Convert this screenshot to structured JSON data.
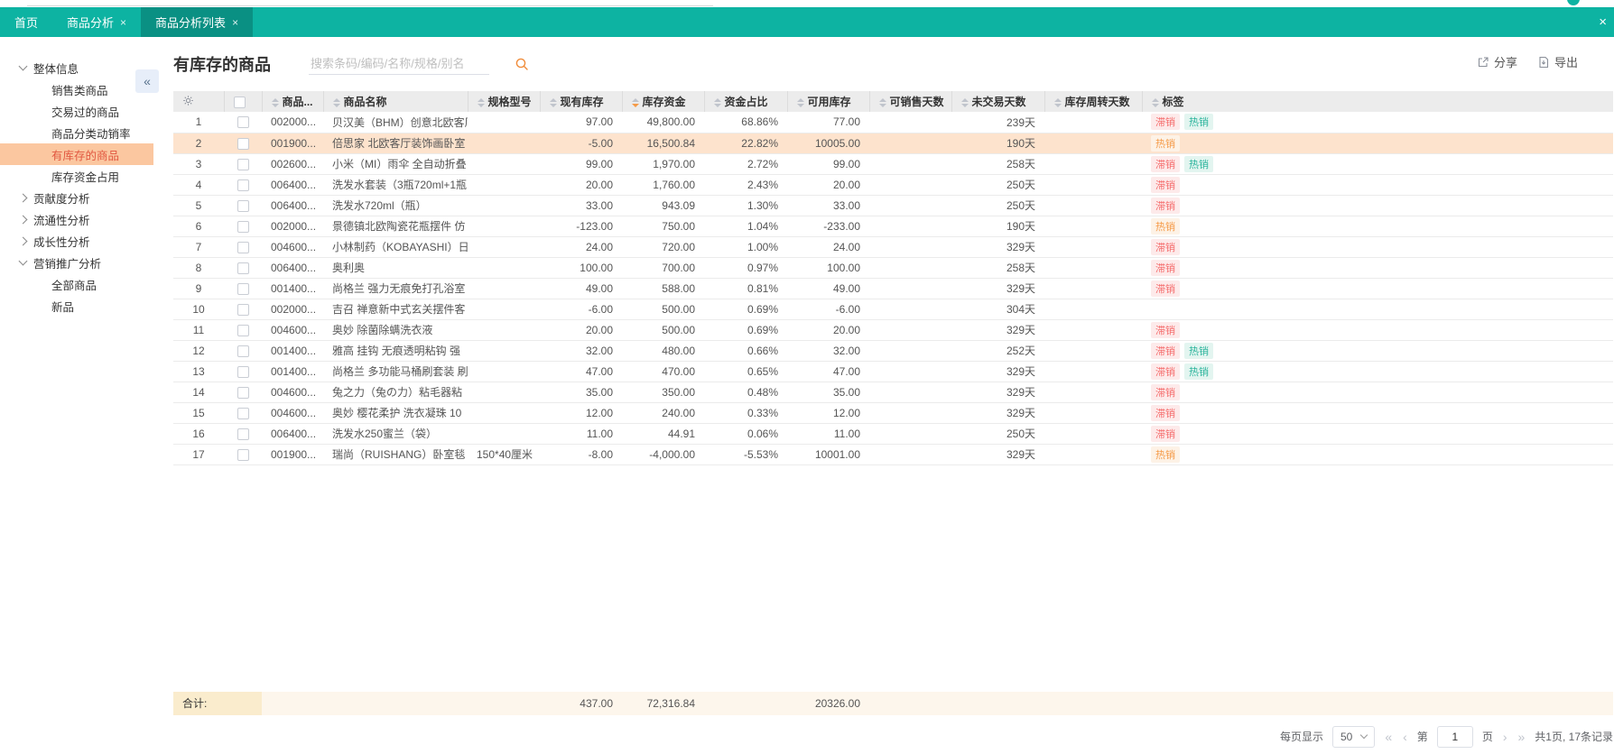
{
  "tabs": [
    {
      "label": "首页",
      "closable": false,
      "active": false
    },
    {
      "label": "商品分析",
      "closable": true,
      "active": false
    },
    {
      "label": "商品分析列表",
      "closable": true,
      "active": true
    }
  ],
  "topbar": {
    "close_icon": "×"
  },
  "sidebar": {
    "collapse_icon": "«",
    "items": [
      {
        "label": "整体信息",
        "level": 0,
        "state": "expanded",
        "selected": false
      },
      {
        "label": "销售类商品",
        "level": 1,
        "state": "leaf",
        "selected": false
      },
      {
        "label": "交易过的商品",
        "level": 1,
        "state": "leaf",
        "selected": false
      },
      {
        "label": "商品分类动销率",
        "level": 1,
        "state": "leaf",
        "selected": false
      },
      {
        "label": "有库存的商品",
        "level": 1,
        "state": "leaf",
        "selected": true
      },
      {
        "label": "库存资金占用",
        "level": 1,
        "state": "leaf",
        "selected": false
      },
      {
        "label": "贡献度分析",
        "level": 0,
        "state": "collapsed",
        "selected": false
      },
      {
        "label": "流通性分析",
        "level": 0,
        "state": "collapsed",
        "selected": false
      },
      {
        "label": "成长性分析",
        "level": 0,
        "state": "collapsed",
        "selected": false
      },
      {
        "label": "营销推广分析",
        "level": 0,
        "state": "expanded",
        "selected": false
      },
      {
        "label": "全部商品",
        "level": 1,
        "state": "leaf",
        "selected": false
      },
      {
        "label": "新品",
        "level": 1,
        "state": "leaf",
        "selected": false
      }
    ]
  },
  "header": {
    "title": "有库存的商品",
    "search_placeholder": "搜索条码/编码/名称/规格/别名",
    "share_label": "分享",
    "export_label": "导出"
  },
  "table": {
    "columns": [
      {
        "key": "code",
        "label": "商品...",
        "align": "left",
        "sort": "none"
      },
      {
        "key": "name",
        "label": "商品名称",
        "align": "left",
        "sort": "none"
      },
      {
        "key": "spec",
        "label": "规格型号",
        "align": "left",
        "sort": "none"
      },
      {
        "key": "stock",
        "label": "现有库存",
        "align": "right",
        "sort": "none"
      },
      {
        "key": "fund",
        "label": "库存资金",
        "align": "right",
        "sort": "desc"
      },
      {
        "key": "ratio",
        "label": "资金占比",
        "align": "right",
        "sort": "none"
      },
      {
        "key": "avail",
        "label": "可用库存",
        "align": "right",
        "sort": "none"
      },
      {
        "key": "sale_days",
        "label": "可销售天数",
        "align": "right",
        "sort": "none"
      },
      {
        "key": "idle_days",
        "label": "未交易天数",
        "align": "right",
        "sort": "none"
      },
      {
        "key": "turnover_days",
        "label": "库存周转天数",
        "align": "right",
        "sort": "none"
      },
      {
        "key": "tags",
        "label": "标签",
        "align": "left",
        "sort": "none"
      }
    ],
    "tag_colors": {
      "stale": "#f56c6c",
      "hot": "#2bb49c",
      "hot-alt": "#f59a47"
    },
    "rows": [
      {
        "num": "1",
        "code": "002000...",
        "name": "贝汉美（BHM）创意北欧客厅",
        "spec": "",
        "stock": "97.00",
        "fund": "49,800.00",
        "ratio": "68.86%",
        "avail": "77.00",
        "sale_days": "",
        "idle_days": "239天",
        "turnover_days": "",
        "tags": [
          {
            "label": "滞销",
            "type": "stale"
          },
          {
            "label": "热销",
            "type": "hot"
          }
        ],
        "highlighted": false
      },
      {
        "num": "2",
        "code": "001900...",
        "name": "倍思家 北欧客厅装饰画卧室",
        "spec": "",
        "stock": "-5.00",
        "fund": "16,500.84",
        "ratio": "22.82%",
        "avail": "10005.00",
        "sale_days": "",
        "idle_days": "190天",
        "turnover_days": "",
        "tags": [
          {
            "label": "热销",
            "type": "hot-alt"
          }
        ],
        "highlighted": true
      },
      {
        "num": "3",
        "code": "002600...",
        "name": "小米（MI）雨伞 全自动折叠",
        "spec": "",
        "stock": "99.00",
        "fund": "1,970.00",
        "ratio": "2.72%",
        "avail": "99.00",
        "sale_days": "",
        "idle_days": "258天",
        "turnover_days": "",
        "tags": [
          {
            "label": "滞销",
            "type": "stale"
          },
          {
            "label": "热销",
            "type": "hot"
          }
        ],
        "highlighted": false
      },
      {
        "num": "4",
        "code": "006400...",
        "name": "洗发水套装（3瓶720ml+1瓶",
        "spec": "",
        "stock": "20.00",
        "fund": "1,760.00",
        "ratio": "2.43%",
        "avail": "20.00",
        "sale_days": "",
        "idle_days": "250天",
        "turnover_days": "",
        "tags": [
          {
            "label": "滞销",
            "type": "stale"
          }
        ],
        "highlighted": false
      },
      {
        "num": "5",
        "code": "006400...",
        "name": "洗发水720ml（瓶）",
        "spec": "",
        "stock": "33.00",
        "fund": "943.09",
        "ratio": "1.30%",
        "avail": "33.00",
        "sale_days": "",
        "idle_days": "250天",
        "turnover_days": "",
        "tags": [
          {
            "label": "滞销",
            "type": "stale"
          }
        ],
        "highlighted": false
      },
      {
        "num": "6",
        "code": "002000...",
        "name": "景德镇北欧陶瓷花瓶摆件 仿",
        "spec": "",
        "stock": "-123.00",
        "fund": "750.00",
        "ratio": "1.04%",
        "avail": "-233.00",
        "sale_days": "",
        "idle_days": "190天",
        "turnover_days": "",
        "tags": [
          {
            "label": "热销",
            "type": "hot-alt"
          }
        ],
        "highlighted": false
      },
      {
        "num": "7",
        "code": "004600...",
        "name": "小林制药（KOBAYASHI）日",
        "spec": "",
        "stock": "24.00",
        "fund": "720.00",
        "ratio": "1.00%",
        "avail": "24.00",
        "sale_days": "",
        "idle_days": "329天",
        "turnover_days": "",
        "tags": [
          {
            "label": "滞销",
            "type": "stale"
          }
        ],
        "highlighted": false
      },
      {
        "num": "8",
        "code": "006400...",
        "name": "奥利奥",
        "spec": "",
        "stock": "100.00",
        "fund": "700.00",
        "ratio": "0.97%",
        "avail": "100.00",
        "sale_days": "",
        "idle_days": "258天",
        "turnover_days": "",
        "tags": [
          {
            "label": "滞销",
            "type": "stale"
          }
        ],
        "highlighted": false
      },
      {
        "num": "9",
        "code": "001400...",
        "name": "尚格兰 强力无痕免打孔浴室",
        "spec": "",
        "stock": "49.00",
        "fund": "588.00",
        "ratio": "0.81%",
        "avail": "49.00",
        "sale_days": "",
        "idle_days": "329天",
        "turnover_days": "",
        "tags": [
          {
            "label": "滞销",
            "type": "stale"
          }
        ],
        "highlighted": false
      },
      {
        "num": "10",
        "code": "002000...",
        "name": "吉召 禅意新中式玄关摆件客",
        "spec": "",
        "stock": "-6.00",
        "fund": "500.00",
        "ratio": "0.69%",
        "avail": "-6.00",
        "sale_days": "",
        "idle_days": "304天",
        "turnover_days": "",
        "tags": [],
        "highlighted": false
      },
      {
        "num": "11",
        "code": "004600...",
        "name": "奥妙 除菌除螨洗衣液",
        "spec": "",
        "stock": "20.00",
        "fund": "500.00",
        "ratio": "0.69%",
        "avail": "20.00",
        "sale_days": "",
        "idle_days": "329天",
        "turnover_days": "",
        "tags": [
          {
            "label": "滞销",
            "type": "stale"
          }
        ],
        "highlighted": false
      },
      {
        "num": "12",
        "code": "001400...",
        "name": "雅高 挂钩 无痕透明粘钩 强",
        "spec": "",
        "stock": "32.00",
        "fund": "480.00",
        "ratio": "0.66%",
        "avail": "32.00",
        "sale_days": "",
        "idle_days": "252天",
        "turnover_days": "",
        "tags": [
          {
            "label": "滞销",
            "type": "stale"
          },
          {
            "label": "热销",
            "type": "hot"
          }
        ],
        "highlighted": false
      },
      {
        "num": "13",
        "code": "001400...",
        "name": "尚格兰 多功能马桶刷套装 刷",
        "spec": "",
        "stock": "47.00",
        "fund": "470.00",
        "ratio": "0.65%",
        "avail": "47.00",
        "sale_days": "",
        "idle_days": "329天",
        "turnover_days": "",
        "tags": [
          {
            "label": "滞销",
            "type": "stale"
          },
          {
            "label": "热销",
            "type": "hot"
          }
        ],
        "highlighted": false
      },
      {
        "num": "14",
        "code": "004600...",
        "name": "兔之力（兔の力）粘毛器粘",
        "spec": "",
        "stock": "35.00",
        "fund": "350.00",
        "ratio": "0.48%",
        "avail": "35.00",
        "sale_days": "",
        "idle_days": "329天",
        "turnover_days": "",
        "tags": [
          {
            "label": "滞销",
            "type": "stale"
          }
        ],
        "highlighted": false
      },
      {
        "num": "15",
        "code": "004600...",
        "name": "奥妙 樱花柔护 洗衣凝珠 10",
        "spec": "",
        "stock": "12.00",
        "fund": "240.00",
        "ratio": "0.33%",
        "avail": "12.00",
        "sale_days": "",
        "idle_days": "329天",
        "turnover_days": "",
        "tags": [
          {
            "label": "滞销",
            "type": "stale"
          }
        ],
        "highlighted": false
      },
      {
        "num": "16",
        "code": "006400...",
        "name": "洗发水250蜜兰（袋）",
        "spec": "",
        "stock": "11.00",
        "fund": "44.91",
        "ratio": "0.06%",
        "avail": "11.00",
        "sale_days": "",
        "idle_days": "250天",
        "turnover_days": "",
        "tags": [
          {
            "label": "滞销",
            "type": "stale"
          }
        ],
        "highlighted": false
      },
      {
        "num": "17",
        "code": "001900...",
        "name": "瑞尚（RUISHANG）卧室毯",
        "spec": "150*40厘米",
        "stock": "-8.00",
        "fund": "-4,000.00",
        "ratio": "-5.53%",
        "avail": "10001.00",
        "sale_days": "",
        "idle_days": "329天",
        "turnover_days": "",
        "tags": [
          {
            "label": "热销",
            "type": "hot-alt"
          }
        ],
        "highlighted": false
      }
    ],
    "summary": {
      "label": "合计:",
      "stock": "437.00",
      "fund": "72,316.84",
      "ratio": "",
      "avail": "20326.00"
    }
  },
  "pagination": {
    "page_size_label": "每页显示",
    "page_size": "50",
    "first_icon": "«",
    "prev_icon": "‹",
    "page_prefix": "第",
    "page": "1",
    "page_suffix": "页",
    "next_icon": "›",
    "last_icon": "»",
    "total_text": "共1页, 17条记录"
  },
  "colors": {
    "topbar": "#0db3a2",
    "topbar_active": "#0a9083",
    "selected_nav_bg": "#fbc7a0",
    "selected_nav_text": "#e25840",
    "row_highlight": "#fde3cd",
    "summary_bg": "#fdf6ec",
    "search_icon": "#f08c3a"
  }
}
